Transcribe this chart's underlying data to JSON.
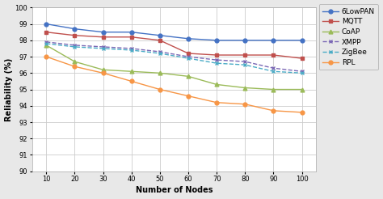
{
  "x": [
    10,
    20,
    30,
    40,
    50,
    60,
    70,
    80,
    90,
    100
  ],
  "series": {
    "6LowPAN": [
      99.0,
      98.7,
      98.5,
      98.5,
      98.3,
      98.1,
      98.0,
      98.0,
      98.0,
      98.0
    ],
    "MQTT": [
      98.5,
      98.3,
      98.2,
      98.2,
      98.0,
      97.2,
      97.1,
      97.1,
      97.1,
      96.9
    ],
    "CoAP": [
      97.7,
      96.7,
      96.2,
      96.1,
      96.0,
      95.8,
      95.3,
      95.1,
      95.0,
      95.0
    ],
    "XMPP": [
      97.9,
      97.7,
      97.6,
      97.5,
      97.3,
      97.0,
      96.8,
      96.7,
      96.3,
      96.1
    ],
    "ZigBee": [
      97.8,
      97.6,
      97.5,
      97.4,
      97.2,
      96.9,
      96.6,
      96.5,
      96.1,
      96.0
    ],
    "RPL": [
      97.0,
      96.4,
      96.0,
      95.5,
      95.0,
      94.6,
      94.2,
      94.1,
      93.7,
      93.6
    ]
  },
  "colors": {
    "6LowPAN": "#4472C4",
    "MQTT": "#C0504D",
    "CoAP": "#9BBB59",
    "XMPP": "#7B68B5",
    "ZigBee": "#4BACC6",
    "RPL": "#F79646"
  },
  "markers": {
    "6LowPAN": "o",
    "MQTT": "s",
    "CoAP": "^",
    "XMPP": "x",
    "ZigBee": "x",
    "RPL": "o"
  },
  "linestyles": {
    "6LowPAN": "-",
    "MQTT": "-",
    "CoAP": "-",
    "XMPP": "--",
    "ZigBee": "--",
    "RPL": "-"
  },
  "ylim": [
    90,
    100
  ],
  "yticks": [
    90,
    91,
    92,
    93,
    94,
    95,
    96,
    97,
    98,
    99,
    100
  ],
  "xlabel": "Number of Nodes",
  "ylabel": "Reliability (%)",
  "bg_color": "#e8e8e8",
  "plot_bg": "#ffffff"
}
